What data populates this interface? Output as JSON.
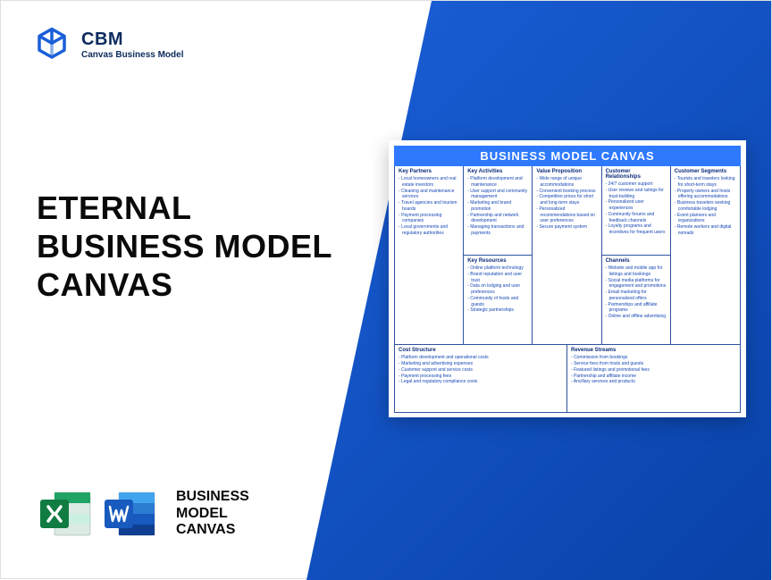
{
  "colors": {
    "gradient_start": "#1a5fd8",
    "gradient_end": "#0942a8",
    "logo_color": "#1a5fd8",
    "text_dark": "#0a0a0a",
    "navy": "#0b2b5c",
    "canvas_header_bg": "#2f79ff",
    "canvas_border": "#2f52a0",
    "cell_title_color": "#0b2b7a",
    "cell_text_color": "#1648b5",
    "excel_dark": "#107c41",
    "excel_light": "#21a366",
    "word_dark": "#185abd",
    "word_light": "#2b7cd3"
  },
  "logo": {
    "abbr": "CBM",
    "sub": "Canvas Business Model"
  },
  "title": {
    "l1": "ETERNAL",
    "l2": "BUSINESS MODEL",
    "l3": "CANVAS"
  },
  "file_label": {
    "l1": "BUSINESS",
    "l2": "MODEL",
    "l3": "CANVAS"
  },
  "canvas": {
    "header": "BUSINESS MODEL CANVAS",
    "key_partners": {
      "title": "Key Partners",
      "items": [
        "Local homeowners and real estate investors",
        "Cleaning and maintenance services",
        "Travel agencies and tourism boards",
        "Payment processing companies",
        "Local governments and regulatory authorities"
      ]
    },
    "key_activities": {
      "title": "Key Activities",
      "items": [
        "Platform development and maintenance",
        "User support and community management",
        "Marketing and brand promotion",
        "Partnership and network development",
        "Managing transactions and payments"
      ]
    },
    "key_resources": {
      "title": "Key Resources",
      "items": [
        "Online platform technology",
        "Brand reputation and user trust",
        "Data on lodging and user preferences",
        "Community of hosts and guests",
        "Strategic partnerships"
      ]
    },
    "value_proposition": {
      "title": "Value Proposition",
      "items": [
        "Wide range of unique accommodations",
        "Convenient booking process",
        "Competitive prices for short and long-term stays",
        "Personalized recommendations based on user preferences",
        "Secure payment system"
      ]
    },
    "customer_relationships": {
      "title": "Customer Relationships",
      "items": [
        "24/7 customer support",
        "User reviews and ratings for trust-building",
        "Personalized user experiences",
        "Community forums and feedback channels",
        "Loyalty programs and incentives for frequent users"
      ]
    },
    "channels": {
      "title": "Channels",
      "items": [
        "Website and mobile app for listings and bookings",
        "Social media platforms for engagement and promotions",
        "Email marketing for personalized offers",
        "Partnerships and affiliate programs",
        "Online and offline advertising"
      ]
    },
    "customer_segments": {
      "title": "Customer Segments",
      "items": [
        "Tourists and travelers looking for short-term stays",
        "Property owners and hosts offering accommodations",
        "Business travelers seeking comfortable lodging",
        "Event planners and organizations",
        "Remote workers and digital nomads"
      ]
    },
    "cost_structure": {
      "title": "Cost Structure",
      "items": [
        "Platform development and operational costs",
        "Marketing and advertising expenses",
        "Customer support and service costs",
        "Payment processing fees",
        "Legal and regulatory compliance costs"
      ]
    },
    "revenue_streams": {
      "title": "Revenue Streams",
      "items": [
        "Commission from bookings",
        "Service fees from hosts and guests",
        "Featured listings and promotional fees",
        "Partnership and affiliate income",
        "Ancillary services and products"
      ]
    }
  }
}
